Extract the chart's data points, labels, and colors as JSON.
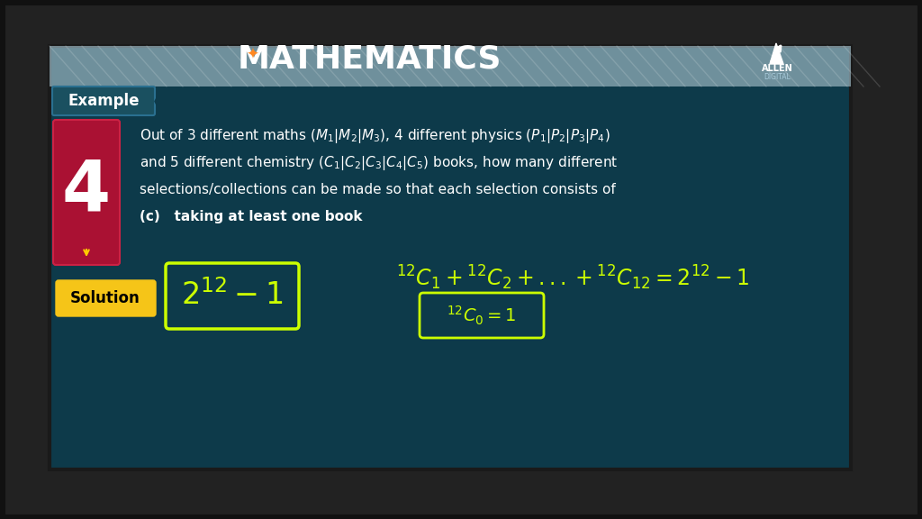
{
  "bg_outer": "#222222",
  "bg_panel": "#0d3a4a",
  "bg_top_light": "#a8c4cc",
  "title": "MATHEMATICS",
  "title_color": "#ffffff",
  "example_label": "Example",
  "example_bg": "#1a5060",
  "body_color": "#ffffff",
  "solution_label": "Solution",
  "solution_bg": "#f5c518",
  "solution_text_color": "#000000",
  "answer_color": "#ccff00",
  "line1": "Out of 3 different maths $(M_1|M_2|M_3)$, 4 different physics $(P_1|P_2|P_3|P_4)$",
  "line2": "and 5 different chemistry $(C_1|C_2|C_3|C_4|C_5)$ books, how many different",
  "line3": "selections/collections can be made so that each selection consists of",
  "line4": "(c)   taking at least one book",
  "equation": "${}^{12}C_1 + {}^{12}C_2 + ... + {}^{12}C_{12} = 2^{12} - 1$",
  "answer_box_text": "$2^{12} - 1$",
  "small_box_text": "${}^{12}C_0 = 1$"
}
